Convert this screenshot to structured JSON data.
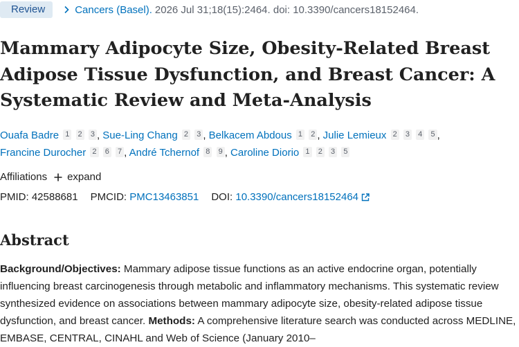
{
  "citation": {
    "article_type": "Review",
    "journal": "Cancers (Basel).",
    "details": "2026 Jul 31;18(15):2464. doi: 10.3390/cancers18152464."
  },
  "title": "Mammary Adipocyte Size, Obesity-Related Breast Adipose Tissue Dysfunction, and Breast Cancer: A Systematic Review and Meta-Analysis",
  "authors": [
    {
      "name": "Ouafa Badre",
      "affils": [
        "1",
        "2",
        "3"
      ]
    },
    {
      "name": "Sue-Ling Chang",
      "affils": [
        "2",
        "3"
      ]
    },
    {
      "name": "Belkacem Abdous",
      "affils": [
        "1",
        "2"
      ]
    },
    {
      "name": "Julie Lemieux",
      "affils": [
        "2",
        "3",
        "4",
        "5"
      ]
    },
    {
      "name": "Francine Durocher",
      "affils": [
        "2",
        "6",
        "7"
      ]
    },
    {
      "name": "André Tchernof",
      "affils": [
        "8",
        "9"
      ]
    },
    {
      "name": "Caroline Diorio",
      "affils": [
        "1",
        "2",
        "3",
        "5"
      ]
    }
  ],
  "affiliations": {
    "label": "Affiliations",
    "expand_label": "expand"
  },
  "identifiers": {
    "pmid_label": "PMID:",
    "pmid": "42588681",
    "pmcid_label": "PMCID:",
    "pmcid": "PMC13463851",
    "doi_label": "DOI:",
    "doi": "10.3390/cancers18152464"
  },
  "abstract": {
    "heading": "Abstract",
    "background_label": "Background/Objectives:",
    "background_text": " Mammary adipose tissue functions as an active endocrine organ, potentially influencing breast carcinogenesis through metabolic and inflammatory mechanisms. This systematic review synthesized evidence on associations between mammary adipocyte size, obesity-related adipose tissue dysfunction, and breast cancer. ",
    "methods_label": "Methods:",
    "methods_text": " A comprehensive literature search was conducted across MEDLINE, EMBASE, CENTRAL, CINAHL and Web of Science (January 2010–"
  },
  "icons": {
    "chevron": "chevron-right-icon",
    "plus": "plus-icon",
    "external": "external-link-icon"
  },
  "colors": {
    "link": "#0071bc",
    "badge_bg": "#dfeaf3",
    "text": "#212121",
    "muted": "#5b616b"
  }
}
